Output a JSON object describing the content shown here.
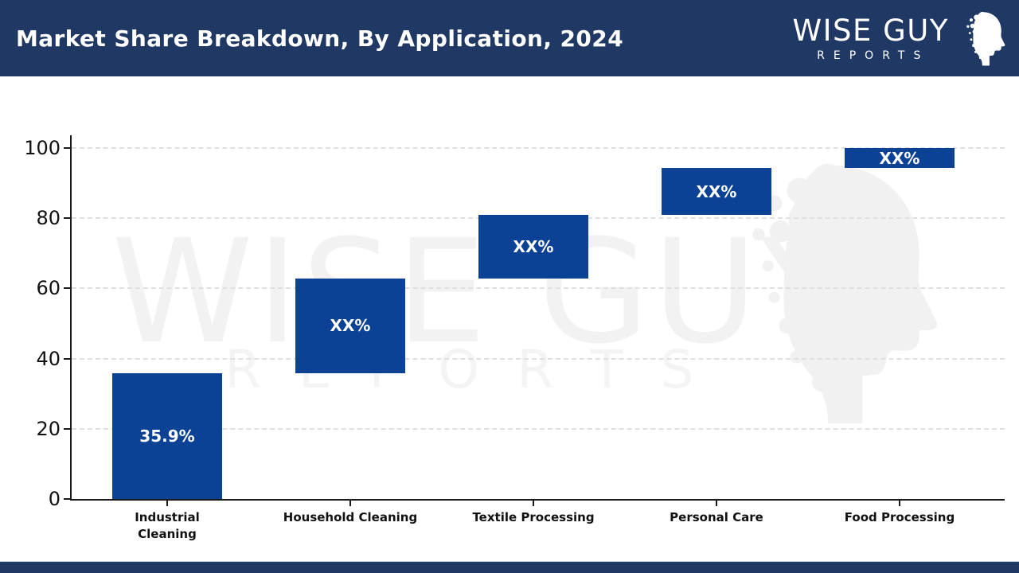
{
  "header": {
    "title": "Market Share Breakdown, By Application, 2024",
    "bg_color": "#1f3864",
    "logo": {
      "line1": "WISE GUY",
      "line2": "REPORTS"
    }
  },
  "watermark": {
    "line1": "WISE GUY",
    "line2": "R E P O R T S"
  },
  "chart_data": {
    "type": "bar",
    "subtype": "waterfall",
    "title": "Market Share Breakdown, By Application, 2024",
    "xlabel": "",
    "ylabel": "",
    "categories": [
      "Industrial\nCleaning",
      "Household Cleaning",
      "Textile Processing",
      "Personal Care",
      "Food Processing"
    ],
    "segments": [
      {
        "category": "Industrial\nCleaning",
        "start": 0,
        "end": 35.9,
        "label": "35.9%"
      },
      {
        "category": "Household Cleaning",
        "start": 35.9,
        "end": 62.9,
        "label": "XX%"
      },
      {
        "category": "Textile Processing",
        "start": 62.9,
        "end": 81.0,
        "label": "XX%"
      },
      {
        "category": "Personal Care",
        "start": 81.0,
        "end": 94.2,
        "label": "XX%"
      },
      {
        "category": "Food Processing",
        "start": 94.2,
        "end": 100.0,
        "label": "XX%"
      }
    ],
    "y_ticks": [
      0,
      20,
      40,
      60,
      80,
      100
    ],
    "ylim": [
      0,
      103.6
    ],
    "grid": true,
    "grid_style": "dashed",
    "bar_color": "#0b4296",
    "bar_label_color": "#ffffff",
    "legend": "none"
  }
}
